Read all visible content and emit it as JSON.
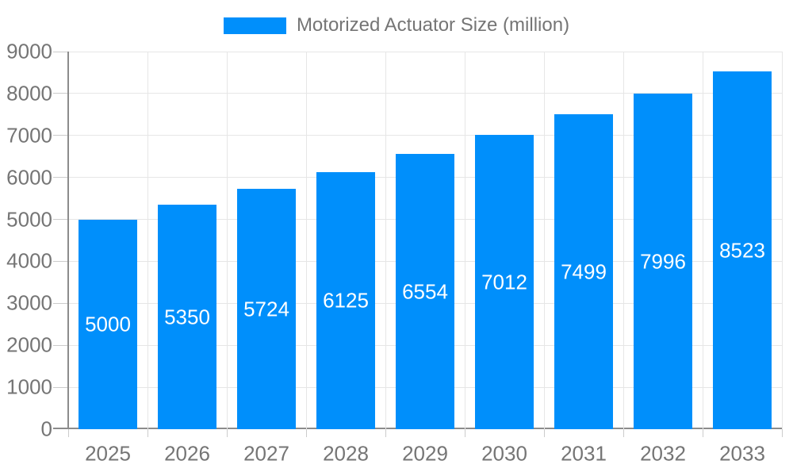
{
  "chart_data": {
    "type": "bar",
    "title": "",
    "legend": {
      "label": "Motorized Actuator Size (million)",
      "position": "top-center"
    },
    "categories": [
      "2025",
      "2026",
      "2027",
      "2028",
      "2029",
      "2030",
      "2031",
      "2032",
      "2033"
    ],
    "series": [
      {
        "name": "Motorized Actuator Size (million)",
        "values": [
          5000,
          5350,
          5724,
          6125,
          6554,
          7012,
          7499,
          7996,
          8523
        ]
      }
    ],
    "value_labels": [
      "5000",
      "5350",
      "5724",
      "6125",
      "6554",
      "7012",
      "7499",
      "7996",
      "8523"
    ],
    "xlabel": "",
    "ylabel": "",
    "ylim": [
      0,
      9000
    ],
    "yticks": [
      0,
      1000,
      2000,
      3000,
      4000,
      5000,
      6000,
      7000,
      8000,
      9000
    ],
    "grid": true,
    "colors": {
      "bar": "#008ffb",
      "axis_text": "#757575",
      "annotation_text": "#ffffff",
      "gridline": "#e6e6e6",
      "axis_line": "#8c8c8c",
      "tick": "#cccccc",
      "background": "#ffffff"
    }
  }
}
